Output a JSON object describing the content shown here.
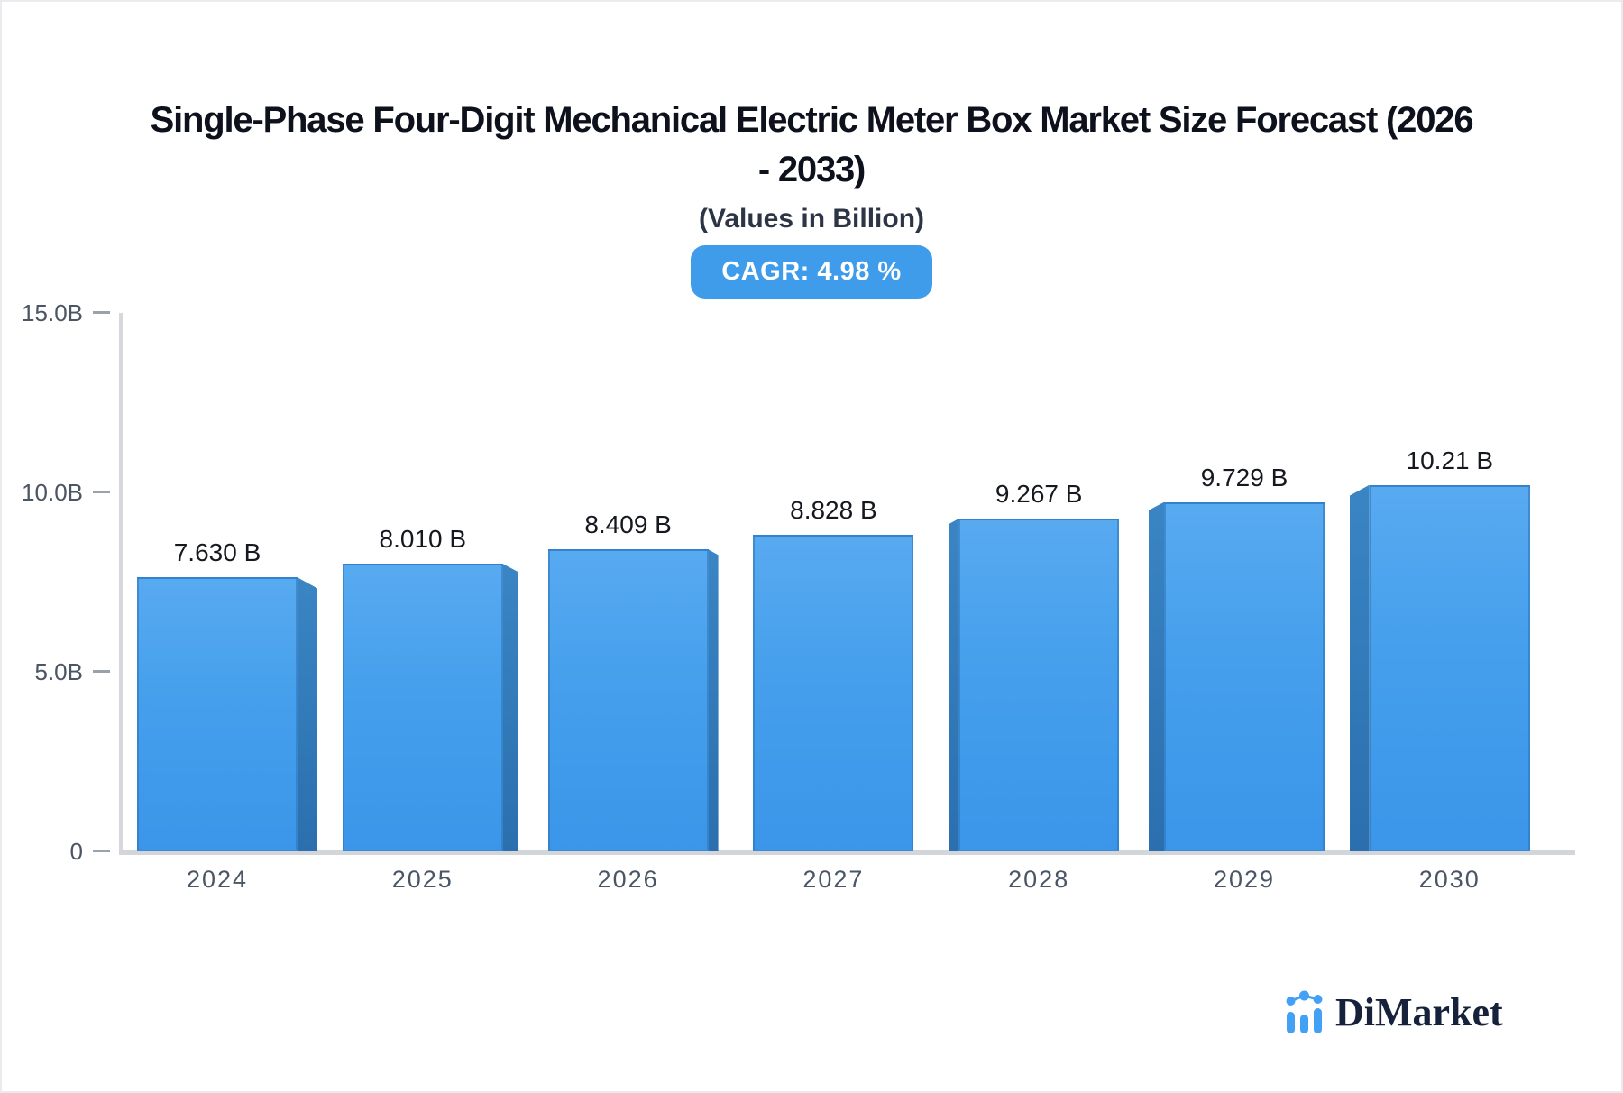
{
  "header": {
    "title_line1": "Single-Phase Four-Digit Mechanical Electric Meter Box Market Size Forecast (2026",
    "title_line2": "- 2033)",
    "subtitle": "(Values in Billion)",
    "cagr_badge": "CAGR: 4.98 %"
  },
  "chart_data": {
    "type": "bar",
    "title": "Single-Phase Four-Digit Mechanical Electric Meter Box Market Size Forecast (2026 - 2033)",
    "subtitle": "(Values in Billion)",
    "cagr_percent": 4.98,
    "categories": [
      "2024",
      "2025",
      "2026",
      "2027",
      "2028",
      "2029",
      "2030"
    ],
    "values": [
      7.63,
      8.01,
      8.409,
      8.828,
      9.267,
      9.729,
      10.21
    ],
    "value_labels": [
      "7.630 B",
      "8.010 B",
      "8.409 B",
      "8.828 B",
      "9.267 B",
      "9.729 B",
      "10.21 B"
    ],
    "unit": "Billion",
    "xlabel": "",
    "ylabel": "",
    "ylim": [
      0,
      15
    ],
    "yticks": [
      {
        "value": 15,
        "label": "15.0B"
      },
      {
        "value": 10,
        "label": "10.0B"
      },
      {
        "value": 5,
        "label": "5.0B"
      },
      {
        "value": 0,
        "label": "0"
      }
    ],
    "grid": false,
    "legend": false,
    "bar_style": "3d",
    "bar_color_top": "#58aaf0",
    "bar_color_bottom": "#3b96ea",
    "bar_side_color": "#2e76b6"
  },
  "branding": {
    "logo_text": "DiMarket",
    "logo_icon": "bar-line-chart-icon"
  },
  "colors": {
    "accent_blue": "#3f9ceb",
    "axis_gray": "#d5d7db",
    "tick_text": "#4b5563",
    "title_text": "#0c111c",
    "value_text": "#15181e",
    "logo_navy": "#16223c",
    "logo_blue": "#42a0f5"
  }
}
